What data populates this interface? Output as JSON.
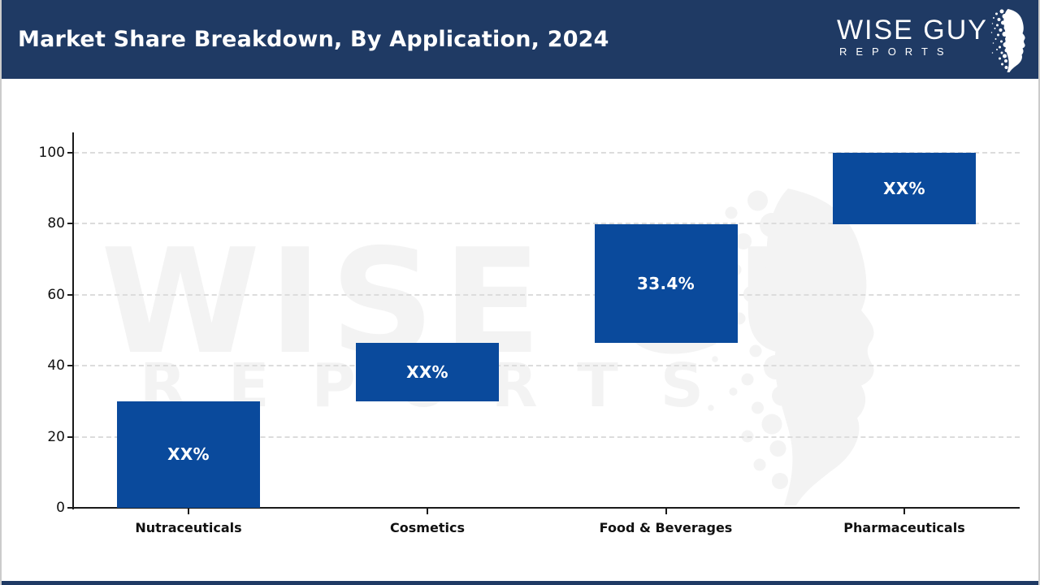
{
  "page": {
    "title": "Market Share Breakdown, By Application, 2024",
    "brand": {
      "line1": "WISE GUY",
      "line2": "REPORTS"
    },
    "watermark": {
      "line1": "WISE GU",
      "line2": "REPORTS"
    },
    "colors": {
      "header_bg": "#1f3a64",
      "bar": "#0a4a9c",
      "grid": "#dcdcdc",
      "axis": "#1a1a1a",
      "watermark": "#f3f3f3",
      "bar_label_text": "#ffffff",
      "tick_text": "#111111"
    }
  },
  "chart_data": {
    "type": "bar",
    "subtype": "floating-waterfall",
    "title": "Market Share Breakdown, By Application, 2024",
    "xlabel": "",
    "ylabel": "",
    "categories": [
      "Nutraceuticals",
      "Cosmetics",
      "Food & Beverages",
      "Pharmaceuticals"
    ],
    "segments": [
      {
        "category": "Nutraceuticals",
        "start": 0,
        "end": 30,
        "label": "XX%"
      },
      {
        "category": "Cosmetics",
        "start": 30,
        "end": 46.3,
        "label": "XX%"
      },
      {
        "category": "Food & Beverages",
        "start": 46.3,
        "end": 79.7,
        "label": "33.4%"
      },
      {
        "category": "Pharmaceuticals",
        "start": 79.7,
        "end": 100,
        "label": "XX%"
      }
    ],
    "yticks": [
      0,
      20,
      40,
      60,
      80,
      100
    ],
    "ylim": [
      0,
      105
    ],
    "grid": "horizontal-dashed",
    "legend": "none",
    "bar_color": "#0a4a9c"
  }
}
